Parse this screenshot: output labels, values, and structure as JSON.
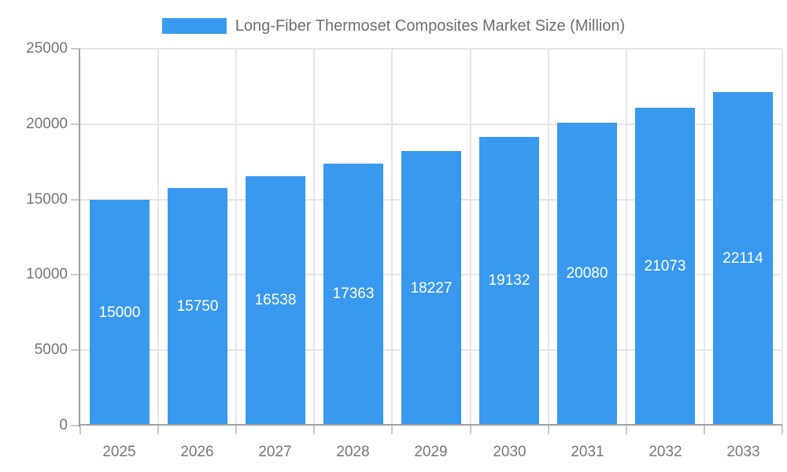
{
  "chart_data": {
    "type": "bar",
    "title": "Long-Fiber Thermoset Composites Market Size (Million)",
    "categories": [
      "2025",
      "2026",
      "2027",
      "2028",
      "2029",
      "2030",
      "2031",
      "2032",
      "2033"
    ],
    "values": [
      15000,
      15750,
      16538,
      17363,
      18227,
      19132,
      20080,
      21073,
      22114
    ],
    "series": [
      {
        "name": "Long-Fiber Thermoset Composites Market Size (Million)",
        "values": [
          15000,
          15750,
          16538,
          17363,
          18227,
          19132,
          20080,
          21073,
          22114
        ]
      }
    ],
    "xlabel": "",
    "ylabel": "",
    "ylim": [
      0,
      25000
    ],
    "yticks": [
      0,
      5000,
      10000,
      15000,
      20000,
      25000
    ],
    "grid": true,
    "vertical_grid": true,
    "legend_position": "top",
    "bar_value_labels": true
  },
  "colors": {
    "bar": "#3999ee",
    "grid": "#e6e6e6",
    "axis": "#a0a0a0",
    "tick": "#c9c9c9",
    "axis_text": "#757575",
    "legend_text": "#6e6e6e",
    "bar_label_text": "#ffffff",
    "background": "#ffffff"
  }
}
